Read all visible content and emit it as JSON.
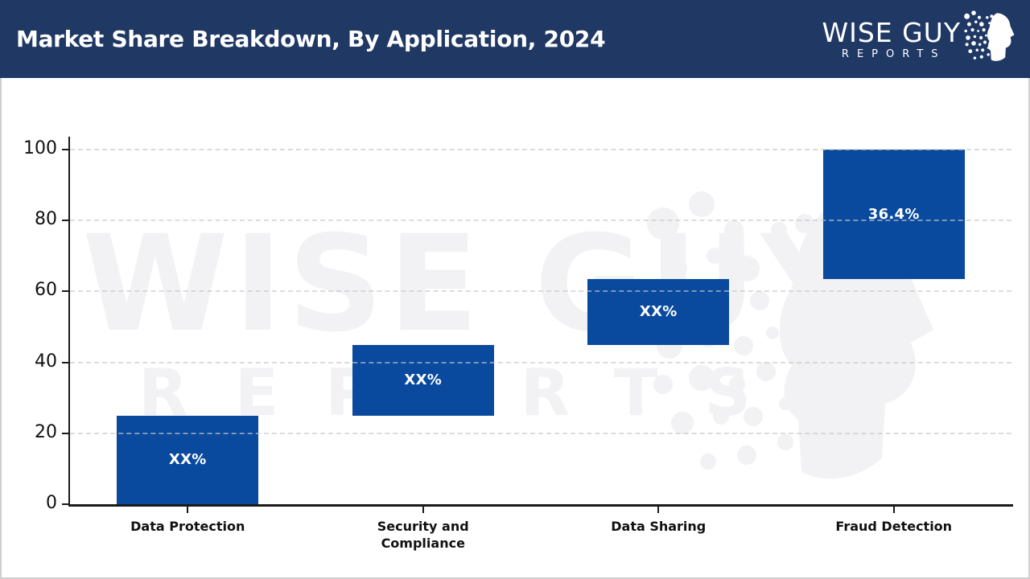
{
  "header": {
    "title": "Market Share Breakdown, By Application, 2024",
    "logo": {
      "line1": "WISE GUY",
      "line2": "REPORTS"
    }
  },
  "watermark": {
    "line1": "WISE GUY",
    "line2": "REPORTS"
  },
  "colors": {
    "header_bg": "#1f3864",
    "bar": "#0a4a9e",
    "bar_label": "#ffffff",
    "axis": "#1a1a1a",
    "gridline": "#c6c6c6",
    "watermark": "#f2f2f4",
    "frame_border": "#cfcfcf"
  },
  "chart_data": {
    "type": "bar",
    "subtype": "floating-waterfall",
    "title": "Market Share Breakdown, By Application, 2024",
    "categories": [
      "Data Protection",
      "Security and Compliance",
      "Data Sharing",
      "Fraud Detection"
    ],
    "bars": [
      {
        "category": "Data Protection",
        "tick_label": "Data Protection",
        "start": 0,
        "end": 25,
        "label": "XX%"
      },
      {
        "category": "Security and Compliance",
        "tick_label": "Security and\nCompliance",
        "start": 25,
        "end": 45,
        "label": "XX%"
      },
      {
        "category": "Data Sharing",
        "tick_label": "Data Sharing",
        "start": 45,
        "end": 63.6,
        "label": "XX%"
      },
      {
        "category": "Fraud Detection",
        "tick_label": "Fraud Detection",
        "start": 63.6,
        "end": 100,
        "label": "36.4%"
      }
    ],
    "ylim": [
      0,
      100
    ],
    "yticks": [
      0,
      20,
      40,
      60,
      80,
      100
    ],
    "xlabel": "",
    "ylabel": "",
    "grid": "horizontal-dashed",
    "legend": "none",
    "bar_color": "#0a4a9e"
  }
}
